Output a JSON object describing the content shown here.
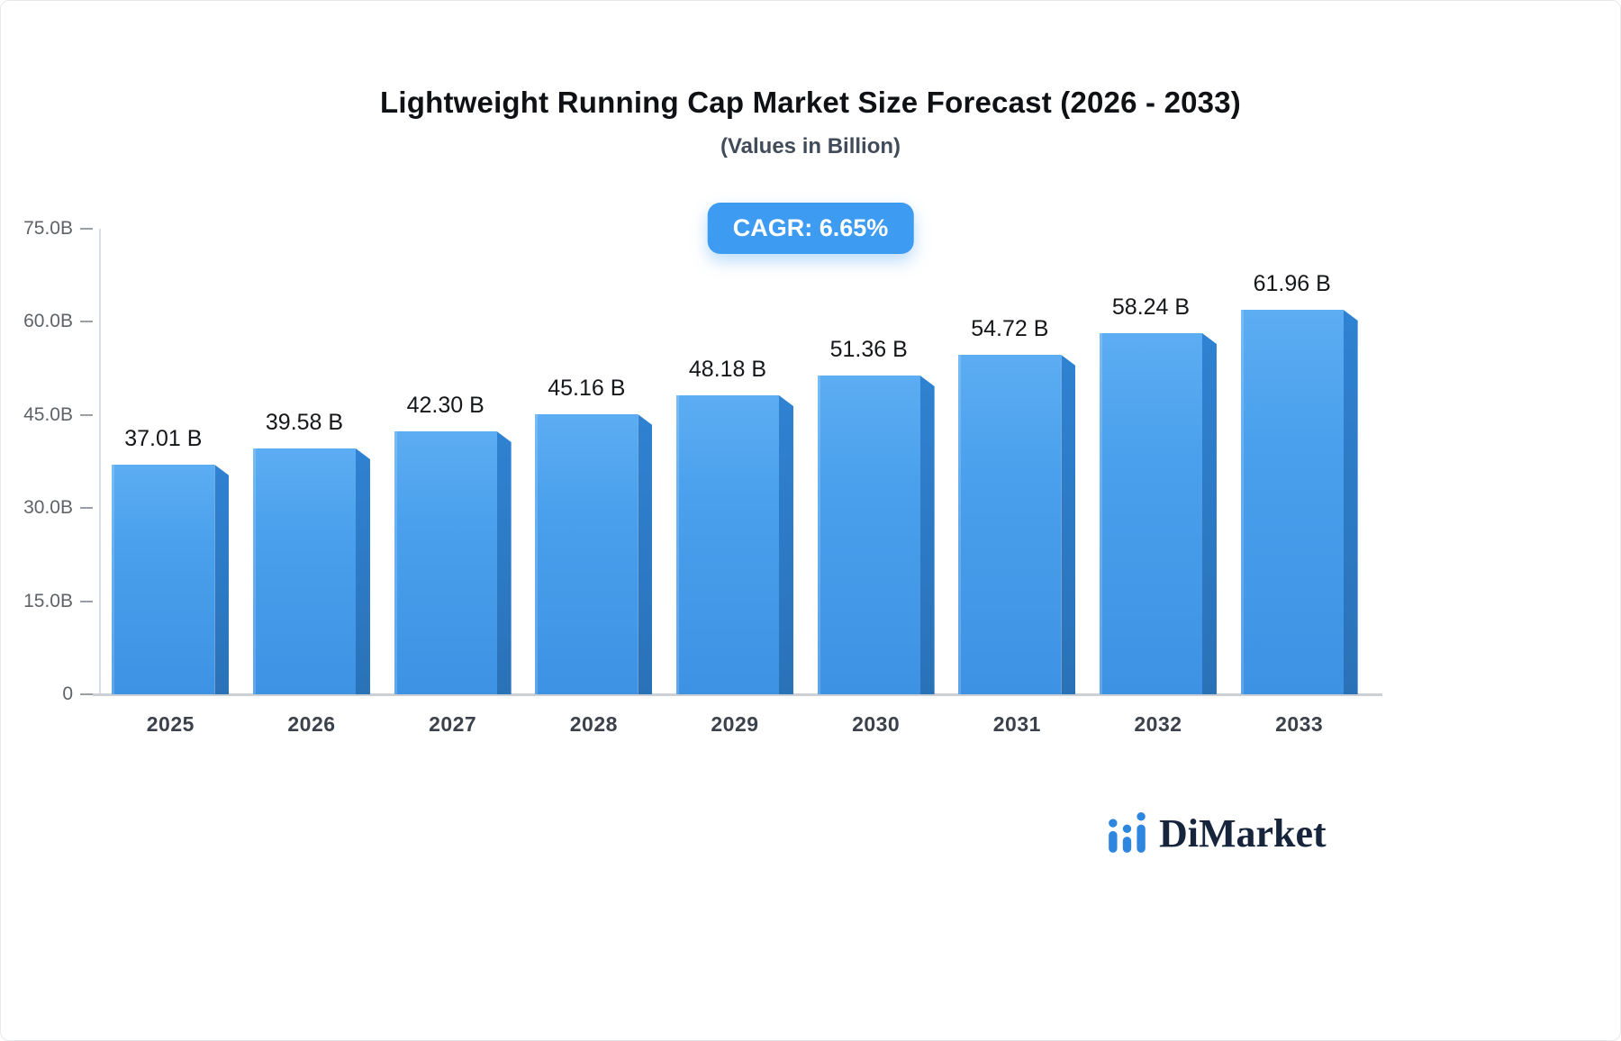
{
  "title": "Lightweight Running Cap Market Size Forecast (2026 - 2033)",
  "subtitle": "(Values in Billion)",
  "badge": {
    "label": "CAGR: 6.65%"
  },
  "brand": {
    "name": "DiMarket",
    "icon": "bar-chart-logo-icon",
    "icon_color": "#2e86de",
    "text_color": "#17253c"
  },
  "chart_data": {
    "type": "bar",
    "title": "Lightweight Running Cap Market Size Forecast (2026 - 2033)",
    "subtitle": "(Values in Billion)",
    "categories": [
      "2025",
      "2026",
      "2027",
      "2028",
      "2029",
      "2030",
      "2031",
      "2032",
      "2033"
    ],
    "values": [
      37.01,
      39.58,
      42.3,
      45.16,
      48.18,
      51.36,
      54.72,
      58.24,
      61.96
    ],
    "value_labels": [
      "37.01 B",
      "39.58 B",
      "42.30 B",
      "45.16 B",
      "48.18 B",
      "51.36 B",
      "54.72 B",
      "58.24 B",
      "61.96 B"
    ],
    "xlabel": "",
    "ylabel": "",
    "ylim": [
      0,
      75
    ],
    "yticks": [
      {
        "v": 0,
        "label": "0"
      },
      {
        "v": 15,
        "label": "15.0B"
      },
      {
        "v": 30,
        "label": "30.0B"
      },
      {
        "v": 45,
        "label": "45.0B"
      },
      {
        "v": 60,
        "label": "60.0B"
      },
      {
        "v": 75,
        "label": "75.0B"
      }
    ],
    "grid": false,
    "legend": false,
    "colors": {
      "bar_front": "#4aa0ec",
      "bar_side": "#2c7bc8",
      "badge": "#3d9bf1"
    }
  }
}
